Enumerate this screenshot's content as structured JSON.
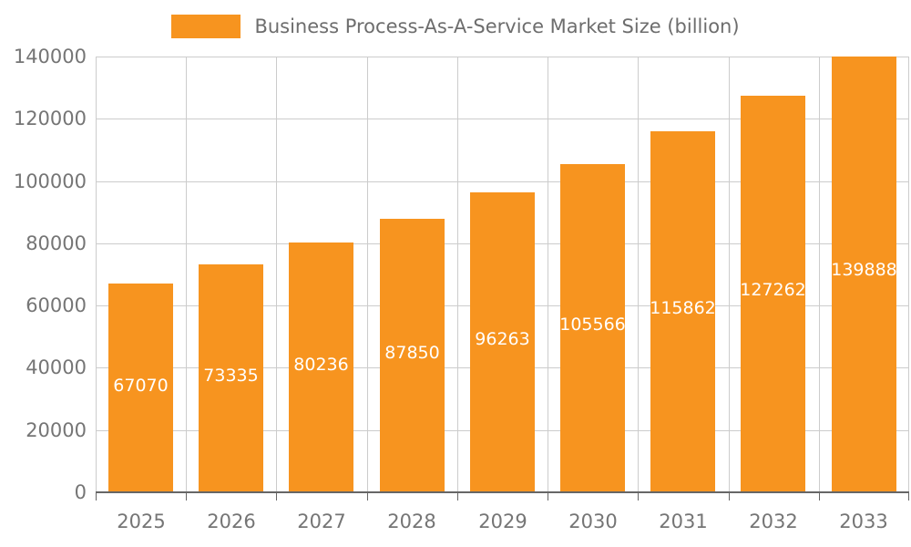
{
  "legend": {
    "label": "Business Process-As-A-Service Market Size (billion)"
  },
  "chart_data": {
    "type": "bar",
    "title": "Business Process-As-A-Service Market Size (billion)",
    "series_name": "Business Process-As-A-Service Market Size (billion)",
    "categories": [
      "2025",
      "2026",
      "2027",
      "2028",
      "2029",
      "2030",
      "2031",
      "2032",
      "2033"
    ],
    "values": [
      67070,
      73335,
      80236,
      87850,
      96263,
      105566,
      115862,
      127262,
      139888
    ],
    "xlabel": "",
    "ylabel": "",
    "ylim": [
      0,
      140000
    ],
    "y_ticks": [
      0,
      20000,
      40000,
      60000,
      80000,
      100000,
      120000,
      140000
    ],
    "grid": true,
    "legend_position": "top",
    "colors": {
      "bar": "#F7941F",
      "value_label": "#FFFFFF",
      "grid": "#CCCCCC",
      "axis_line": "#666666",
      "tick_label": "#757575",
      "title": "#6D6D6D"
    }
  }
}
